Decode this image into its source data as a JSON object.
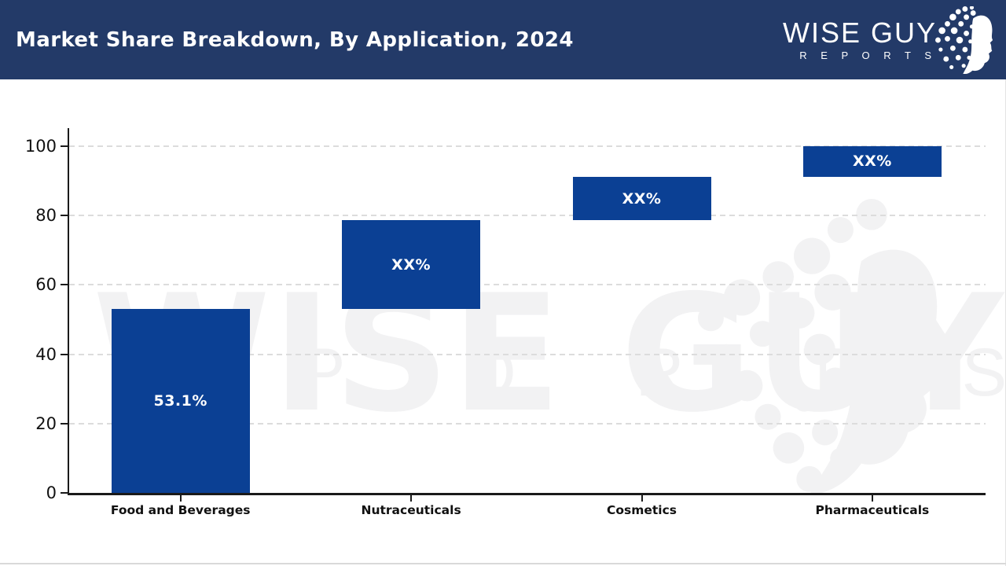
{
  "header": {
    "title": "Market Share Breakdown, By Application, 2024",
    "logo": {
      "line1": "WISE GUY",
      "line2": "R E P O R T S"
    }
  },
  "watermark": {
    "line1": "WISE GUY",
    "line2": "P O R T S"
  },
  "colors": {
    "header_bg": "#233A68",
    "bar_blue": "#0B4094",
    "watermark_gray": "#F2F2F3",
    "grid_gray": "#DCDCDC",
    "axis_black": "#1A1A1A",
    "label_white": "#FFFFFF"
  },
  "chart_data": {
    "type": "bar",
    "subtype": "waterfall",
    "title": "Market Share Breakdown, By Application, 2024",
    "xlabel": "",
    "ylabel": "",
    "ylim": [
      0,
      105
    ],
    "yticks": [
      0,
      20,
      40,
      60,
      80,
      100
    ],
    "grid": "horizontal-dashed",
    "legend": "none",
    "categories": [
      "Food and Beverages",
      "Nutraceuticals",
      "Cosmetics",
      "Pharmaceuticals"
    ],
    "segments": [
      {
        "category": "Food and Beverages",
        "start": 0,
        "end": 53.1,
        "label": "53.1%"
      },
      {
        "category": "Nutraceuticals",
        "start": 53.1,
        "end": 78.6,
        "label": "XX%"
      },
      {
        "category": "Cosmetics",
        "start": 78.6,
        "end": 91.2,
        "label": "XX%"
      },
      {
        "category": "Pharmaceuticals",
        "start": 91.2,
        "end": 100,
        "label": "XX%"
      }
    ]
  }
}
